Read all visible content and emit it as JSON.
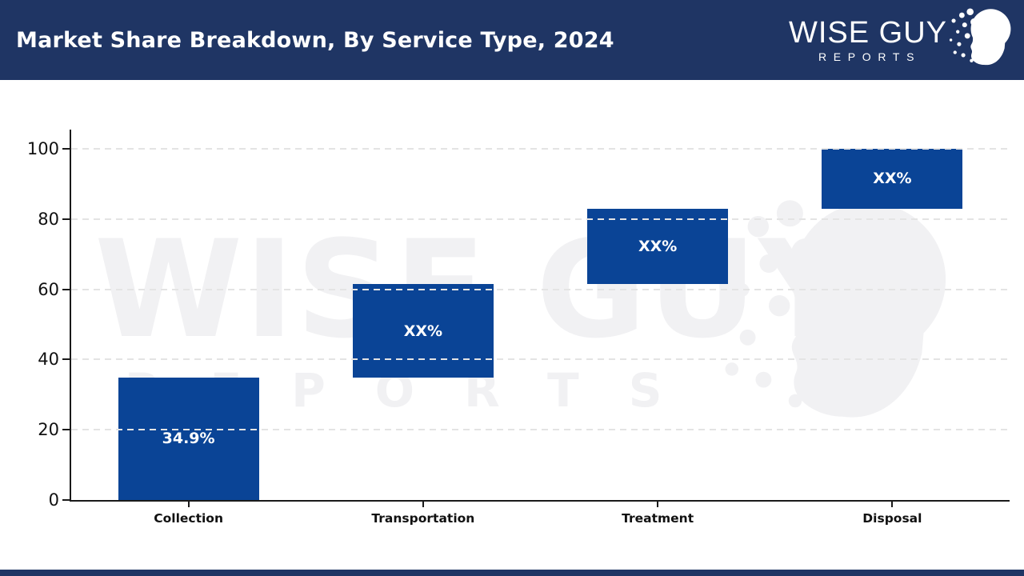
{
  "header": {
    "title": "Market Share Breakdown, By Service Type, 2024",
    "logo": {
      "line1": "WISE GUY",
      "line2": "REPORTS"
    }
  },
  "watermark": {
    "line1": "WISE GUY",
    "line2": "REPORTS"
  },
  "chart_data": {
    "type": "bar",
    "variant": "waterfall",
    "title": "Market Share Breakdown, By Service Type, 2024",
    "categories": [
      "Collection",
      "Transportation",
      "Treatment",
      "Disposal"
    ],
    "series": [
      {
        "name": "Market Share (%)",
        "segments": [
          {
            "category": "Collection",
            "start": 0,
            "end": 34.9,
            "label": "34.9%"
          },
          {
            "category": "Transportation",
            "start": 34.9,
            "end": 61.4,
            "label": "XX%"
          },
          {
            "category": "Treatment",
            "start": 61.4,
            "end": 83.0,
            "label": "XX%"
          },
          {
            "category": "Disposal",
            "start": 83.0,
            "end": 100.0,
            "label": "XX%"
          }
        ]
      }
    ],
    "xlabel": "",
    "ylabel": "",
    "ylim": [
      0,
      100
    ],
    "yticks": [
      0,
      20,
      40,
      60,
      80,
      100
    ],
    "grid": true,
    "grid_style": "dashed",
    "legend": "none"
  },
  "colors": {
    "header_bg": "#1f3564",
    "footer_bg": "#1f3564",
    "bar": "#0a4496",
    "bar_label": "#ffffff",
    "grid": "#e4e4e4",
    "axis": "#1a1a1a",
    "watermark": "#f1f1f3"
  }
}
